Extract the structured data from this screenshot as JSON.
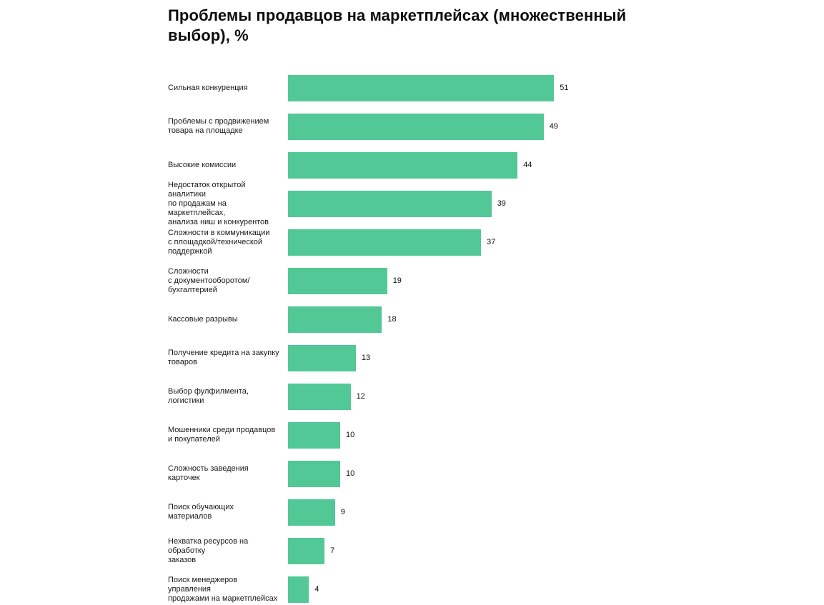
{
  "title": "Проблемы продавцов на маркетплейсах (множественный выбор), %",
  "chart_data": {
    "type": "bar",
    "orientation": "horizontal",
    "title": "Проблемы продавцов на маркетплейсах (множественный выбор), %",
    "xlabel": "",
    "ylabel": "",
    "legend": false,
    "grid": false,
    "bar_color": "#52c896",
    "value_labels": "right of bar",
    "xlim": [
      0,
      55
    ],
    "categories": [
      "Сильная конкуренция",
      "Проблемы с продвижением\nтовара на площадке",
      "Высокие комиссии",
      "Недостаток открытой аналитики\nпо продажам на маркетплейсах,\nанализа ниш и конкурентов",
      "Сложности в коммуникации\nс площадкой/технической\nподдержкой",
      "Сложности\nс документооборотом/\nбухгалтерией",
      "Кассовые разрывы",
      "Получение кредита на закупку\nтоваров",
      "Выбор фулфилмента, логистики",
      "Мошенники среди продавцов\nи покупателей",
      "Сложность заведения карточек",
      "Поиск обучающих материалов",
      "Нехватка ресурсов на обработку\nзаказов",
      "Поиск менеджеров управления\nпродажами на маркетплейсах"
    ],
    "values": [
      51,
      49,
      44,
      39,
      37,
      19,
      18,
      13,
      12,
      10,
      10,
      9,
      7,
      4
    ]
  }
}
